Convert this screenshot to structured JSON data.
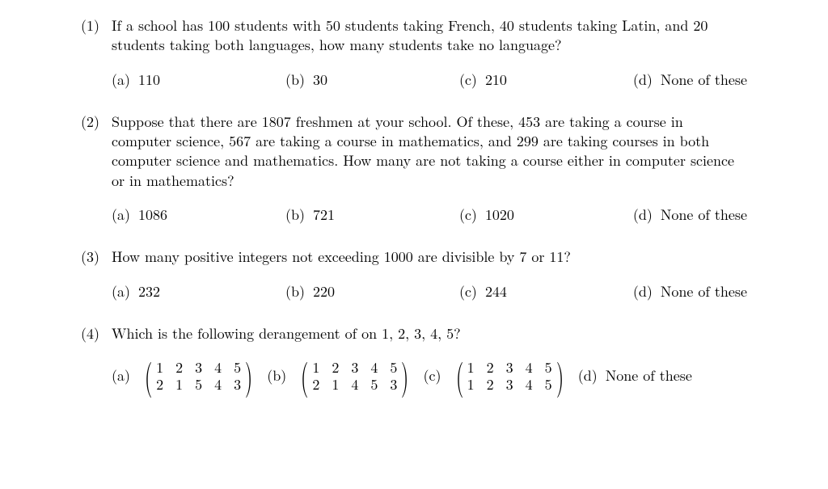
{
  "questions": [
    {
      "num": "(1)",
      "text": "If a school has 100 students with 50 students taking French, 40 students taking Latin, and 20 students taking both languages, how many students take no language?",
      "opts": {
        "a": "(a)",
        "av": "110",
        "b": "(b)",
        "bv": "30",
        "c": "(c)",
        "cv": "210",
        "d": "(d)",
        "dv": "None of these"
      }
    },
    {
      "num": "(2)",
      "text": "Suppose that there are 1807 freshmen at your school. Of these, 453 are taking a course in computer science, 567 are taking a course in mathematics, and 299 are taking courses in both computer science and mathematics. How many are not taking a course either in computer science or in mathematics?",
      "opts": {
        "a": "(a)",
        "av": "1086",
        "b": "(b)",
        "bv": "721",
        "c": "(c)",
        "cv": "1020",
        "d": "(d)",
        "dv": "None of these"
      }
    },
    {
      "num": "(3)",
      "text": "How many positive integers not exceeding 1000 are divisible by 7 or 11?",
      "opts": {
        "a": "(a)",
        "av": "232",
        "b": "(b)",
        "bv": "220",
        "c": "(c)",
        "cv": "244",
        "d": "(d)",
        "dv": "None of these"
      }
    },
    {
      "num": "(4)",
      "text": "Which is the following derangement of on 1, 2, 3, 4, 5?",
      "opts": {
        "a": "(a)",
        "b": "(b)",
        "c": "(c)",
        "d": "(d)",
        "dv": "None of these",
        "ma": {
          "r1": [
            "1",
            "2",
            "3",
            "4",
            "5"
          ],
          "r2": [
            "2",
            "1",
            "5",
            "4",
            "3"
          ]
        },
        "mb": {
          "r1": [
            "1",
            "2",
            "3",
            "4",
            "5"
          ],
          "r2": [
            "2",
            "1",
            "4",
            "5",
            "3"
          ]
        },
        "mc": {
          "r1": [
            "1",
            "2",
            "3",
            "4",
            "5"
          ],
          "r2": [
            "1",
            "2",
            "3",
            "4",
            "5"
          ]
        }
      }
    }
  ]
}
